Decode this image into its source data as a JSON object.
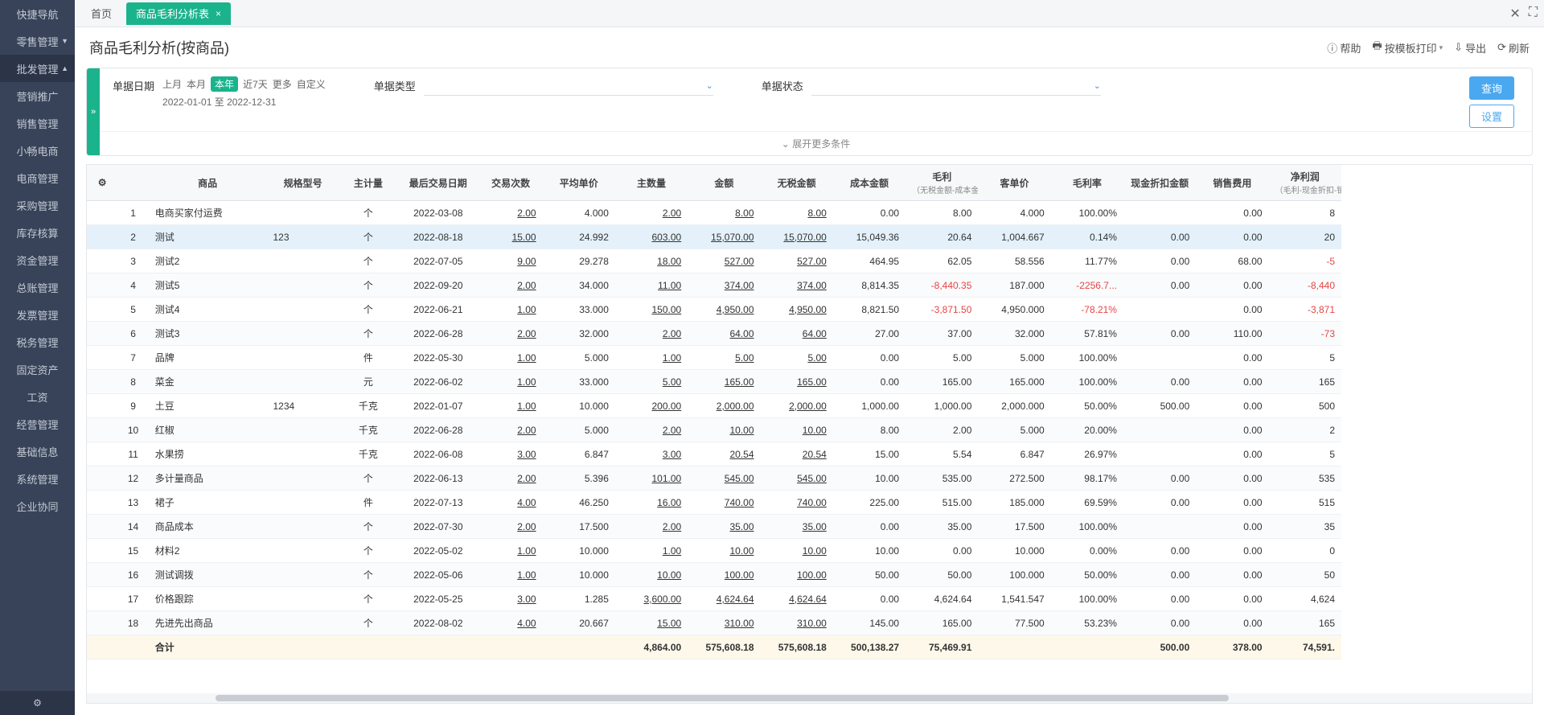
{
  "sidebar": {
    "items": [
      {
        "label": "快捷导航",
        "expand": ""
      },
      {
        "label": "零售管理",
        "expand": "▼"
      },
      {
        "label": "批发管理",
        "expand": "▲",
        "active": true
      },
      {
        "label": "营销推广",
        "sub": true
      },
      {
        "label": "销售管理",
        "sub": true
      },
      {
        "label": "小畅电商"
      },
      {
        "label": "电商管理"
      },
      {
        "label": "采购管理"
      },
      {
        "label": "库存核算"
      },
      {
        "label": "资金管理"
      },
      {
        "label": "总账管理"
      },
      {
        "label": "发票管理"
      },
      {
        "label": "税务管理"
      },
      {
        "label": "固定资产"
      },
      {
        "label": "工资"
      },
      {
        "label": "经营管理"
      },
      {
        "label": "基础信息"
      },
      {
        "label": "系统管理"
      },
      {
        "label": "企业协同"
      }
    ]
  },
  "tabs": {
    "home": "首页",
    "active": "商品毛利分析表"
  },
  "page": {
    "title": "商品毛利分析(按商品)",
    "actions": {
      "help": "帮助",
      "print": "按模板打印",
      "export": "导出",
      "refresh": "刷新"
    }
  },
  "filter": {
    "dateLabel": "单据日期",
    "dateTabs": [
      "上月",
      "本月",
      "本年",
      "近7天",
      "更多",
      "自定义"
    ],
    "dateSelected": 2,
    "dateRange": "2022-01-01 至 2022-12-31",
    "typeLabel": "单据类型",
    "statusLabel": "单据状态",
    "queryBtn": "查询",
    "settingBtn": "设置",
    "expand": "展开更多条件"
  },
  "columns": [
    {
      "k": "idx",
      "label": "",
      "cls": "c-idx"
    },
    {
      "k": "name",
      "label": "商品",
      "cls": "c-name"
    },
    {
      "k": "spec",
      "label": "规格型号",
      "cls": "c-spec"
    },
    {
      "k": "unit",
      "label": "主计量",
      "cls": "c-unit"
    },
    {
      "k": "date",
      "label": "最后交易日期",
      "cls": "c-date"
    },
    {
      "k": "tx",
      "label": "交易次数",
      "cls": "c-tx"
    },
    {
      "k": "avg",
      "label": "平均单价",
      "cls": "c-std"
    },
    {
      "k": "qty",
      "label": "主数量",
      "cls": "c-std"
    },
    {
      "k": "amt",
      "label": "金额",
      "cls": "c-std"
    },
    {
      "k": "notax",
      "label": "无税金额",
      "cls": "c-std"
    },
    {
      "k": "cost",
      "label": "成本金额",
      "cls": "c-std"
    },
    {
      "k": "gross",
      "label": "毛利",
      "sub": "（无税金额-成本金额）",
      "cls": "c-std"
    },
    {
      "k": "custp",
      "label": "客单价",
      "cls": "c-std"
    },
    {
      "k": "grate",
      "label": "毛利率",
      "cls": "c-std"
    },
    {
      "k": "disc",
      "label": "现金折扣金额",
      "cls": "c-std"
    },
    {
      "k": "sell",
      "label": "销售费用",
      "cls": "c-std"
    },
    {
      "k": "net",
      "label": "净利润",
      "sub": "（毛利-现金折扣-销售费",
      "cls": "c-std"
    }
  ],
  "rows": [
    {
      "idx": 1,
      "name": "电商买家付运费",
      "spec": "",
      "unit": "个",
      "date": "2022-03-08",
      "tx": "2.00",
      "avg": "4.000",
      "qty": "2.00",
      "amt": "8.00",
      "notax": "8.00",
      "cost": "0.00",
      "gross": "8.00",
      "custp": "4.000",
      "grate": "100.00%",
      "disc": "",
      "sell": "0.00",
      "net": "8"
    },
    {
      "idx": 2,
      "name": "测试",
      "spec": "123",
      "unit": "个",
      "date": "2022-08-18",
      "tx": "15.00",
      "avg": "24.992",
      "qty": "603.00",
      "amt": "15,070.00",
      "notax": "15,070.00",
      "cost": "15,049.36",
      "gross": "20.64",
      "custp": "1,004.667",
      "grate": "0.14%",
      "disc": "0.00",
      "sell": "0.00",
      "net": "20",
      "hl": true
    },
    {
      "idx": 3,
      "name": "测试2",
      "spec": "",
      "unit": "个",
      "date": "2022-07-05",
      "tx": "9.00",
      "avg": "29.278",
      "qty": "18.00",
      "amt": "527.00",
      "notax": "527.00",
      "cost": "464.95",
      "gross": "62.05",
      "custp": "58.556",
      "grate": "11.77%",
      "disc": "0.00",
      "sell": "68.00",
      "net": "-5",
      "neg": true
    },
    {
      "idx": 4,
      "name": "测试5",
      "spec": "",
      "unit": "个",
      "date": "2022-09-20",
      "tx": "2.00",
      "avg": "34.000",
      "qty": "11.00",
      "amt": "374.00",
      "notax": "374.00",
      "cost": "8,814.35",
      "gross": "-8,440.35",
      "custp": "187.000",
      "grate": "-2256.7...",
      "disc": "0.00",
      "sell": "0.00",
      "net": "-8,440",
      "neg": true,
      "gneg": true
    },
    {
      "idx": 5,
      "name": "测试4",
      "spec": "",
      "unit": "个",
      "date": "2022-06-21",
      "tx": "1.00",
      "avg": "33.000",
      "qty": "150.00",
      "amt": "4,950.00",
      "notax": "4,950.00",
      "cost": "8,821.50",
      "gross": "-3,871.50",
      "custp": "4,950.000",
      "grate": "-78.21%",
      "disc": "",
      "sell": "0.00",
      "net": "-3,871",
      "neg": true,
      "gneg": true
    },
    {
      "idx": 6,
      "name": "测试3",
      "spec": "",
      "unit": "个",
      "date": "2022-06-28",
      "tx": "2.00",
      "avg": "32.000",
      "qty": "2.00",
      "amt": "64.00",
      "notax": "64.00",
      "cost": "27.00",
      "gross": "37.00",
      "custp": "32.000",
      "grate": "57.81%",
      "disc": "0.00",
      "sell": "110.00",
      "net": "-73",
      "neg": true
    },
    {
      "idx": 7,
      "name": "品牌",
      "spec": "",
      "unit": "件",
      "date": "2022-05-30",
      "tx": "1.00",
      "avg": "5.000",
      "qty": "1.00",
      "amt": "5.00",
      "notax": "5.00",
      "cost": "0.00",
      "gross": "5.00",
      "custp": "5.000",
      "grate": "100.00%",
      "disc": "",
      "sell": "0.00",
      "net": "5"
    },
    {
      "idx": 8,
      "name": "菜金",
      "spec": "",
      "unit": "元",
      "date": "2022-06-02",
      "tx": "1.00",
      "avg": "33.000",
      "qty": "5.00",
      "amt": "165.00",
      "notax": "165.00",
      "cost": "0.00",
      "gross": "165.00",
      "custp": "165.000",
      "grate": "100.00%",
      "disc": "0.00",
      "sell": "0.00",
      "net": "165"
    },
    {
      "idx": 9,
      "name": "土豆",
      "spec": "1234",
      "unit": "千克",
      "date": "2022-01-07",
      "tx": "1.00",
      "avg": "10.000",
      "qty": "200.00",
      "amt": "2,000.00",
      "notax": "2,000.00",
      "cost": "1,000.00",
      "gross": "1,000.00",
      "custp": "2,000.000",
      "grate": "50.00%",
      "disc": "500.00",
      "sell": "0.00",
      "net": "500"
    },
    {
      "idx": 10,
      "name": "红椒",
      "spec": "",
      "unit": "千克",
      "date": "2022-06-28",
      "tx": "2.00",
      "avg": "5.000",
      "qty": "2.00",
      "amt": "10.00",
      "notax": "10.00",
      "cost": "8.00",
      "gross": "2.00",
      "custp": "5.000",
      "grate": "20.00%",
      "disc": "",
      "sell": "0.00",
      "net": "2"
    },
    {
      "idx": 11,
      "name": "水果捞",
      "spec": "",
      "unit": "千克",
      "date": "2022-06-08",
      "tx": "3.00",
      "avg": "6.847",
      "qty": "3.00",
      "amt": "20.54",
      "notax": "20.54",
      "cost": "15.00",
      "gross": "5.54",
      "custp": "6.847",
      "grate": "26.97%",
      "disc": "",
      "sell": "0.00",
      "net": "5"
    },
    {
      "idx": 12,
      "name": "多计量商品",
      "spec": "",
      "unit": "个",
      "date": "2022-06-13",
      "tx": "2.00",
      "avg": "5.396",
      "qty": "101.00",
      "amt": "545.00",
      "notax": "545.00",
      "cost": "10.00",
      "gross": "535.00",
      "custp": "272.500",
      "grate": "98.17%",
      "disc": "0.00",
      "sell": "0.00",
      "net": "535"
    },
    {
      "idx": 13,
      "name": "裙子",
      "spec": "",
      "unit": "件",
      "date": "2022-07-13",
      "tx": "4.00",
      "avg": "46.250",
      "qty": "16.00",
      "amt": "740.00",
      "notax": "740.00",
      "cost": "225.00",
      "gross": "515.00",
      "custp": "185.000",
      "grate": "69.59%",
      "disc": "0.00",
      "sell": "0.00",
      "net": "515"
    },
    {
      "idx": 14,
      "name": "商品成本",
      "spec": "",
      "unit": "个",
      "date": "2022-07-30",
      "tx": "2.00",
      "avg": "17.500",
      "qty": "2.00",
      "amt": "35.00",
      "notax": "35.00",
      "cost": "0.00",
      "gross": "35.00",
      "custp": "17.500",
      "grate": "100.00%",
      "disc": "",
      "sell": "0.00",
      "net": "35"
    },
    {
      "idx": 15,
      "name": "材料2",
      "spec": "",
      "unit": "个",
      "date": "2022-05-02",
      "tx": "1.00",
      "avg": "10.000",
      "qty": "1.00",
      "amt": "10.00",
      "notax": "10.00",
      "cost": "10.00",
      "gross": "0.00",
      "custp": "10.000",
      "grate": "0.00%",
      "disc": "0.00",
      "sell": "0.00",
      "net": "0"
    },
    {
      "idx": 16,
      "name": "测试调拨",
      "spec": "",
      "unit": "个",
      "date": "2022-05-06",
      "tx": "1.00",
      "avg": "10.000",
      "qty": "10.00",
      "amt": "100.00",
      "notax": "100.00",
      "cost": "50.00",
      "gross": "50.00",
      "custp": "100.000",
      "grate": "50.00%",
      "disc": "0.00",
      "sell": "0.00",
      "net": "50"
    },
    {
      "idx": 17,
      "name": "价格跟踪",
      "spec": "",
      "unit": "个",
      "date": "2022-05-25",
      "tx": "3.00",
      "avg": "1.285",
      "qty": "3,600.00",
      "amt": "4,624.64",
      "notax": "4,624.64",
      "cost": "0.00",
      "gross": "4,624.64",
      "custp": "1,541.547",
      "grate": "100.00%",
      "disc": "0.00",
      "sell": "0.00",
      "net": "4,624"
    },
    {
      "idx": 18,
      "name": "先进先出商品",
      "spec": "",
      "unit": "个",
      "date": "2022-08-02",
      "tx": "4.00",
      "avg": "20.667",
      "qty": "15.00",
      "amt": "310.00",
      "notax": "310.00",
      "cost": "145.00",
      "gross": "165.00",
      "custp": "77.500",
      "grate": "53.23%",
      "disc": "0.00",
      "sell": "0.00",
      "net": "165"
    }
  ],
  "total": {
    "label": "合计",
    "qty": "4,864.00",
    "amt": "575,608.18",
    "notax": "575,608.18",
    "cost": "500,138.27",
    "gross": "75,469.91",
    "disc": "500.00",
    "sell": "378.00",
    "net": "74,591."
  }
}
